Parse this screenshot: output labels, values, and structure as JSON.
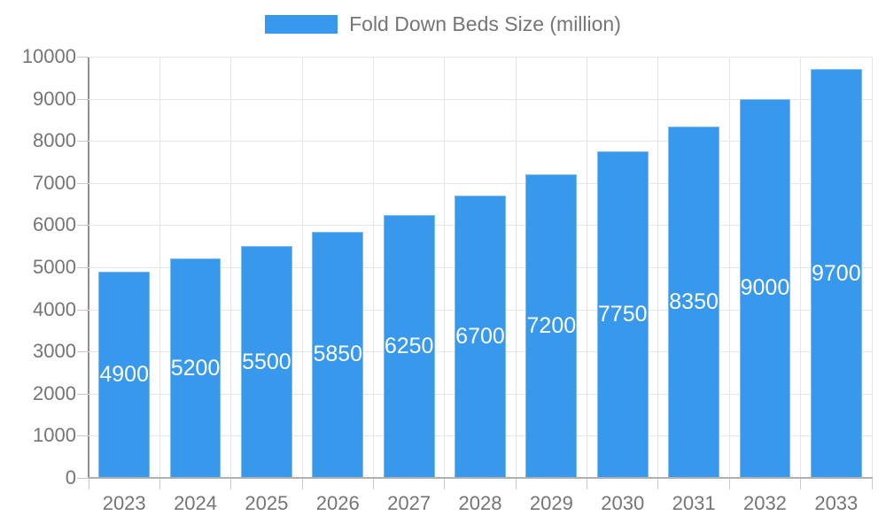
{
  "legend": {
    "items": [
      {
        "label": "Fold Down Beds Size (million)",
        "color": "#3898EC"
      }
    ],
    "position": "top"
  },
  "chart_data": {
    "type": "bar",
    "title": "Fold Down Beds Size (million)",
    "categories": [
      "2023",
      "2024",
      "2025",
      "2026",
      "2027",
      "2028",
      "2029",
      "2030",
      "2031",
      "2032",
      "2033"
    ],
    "values": [
      4900,
      5200,
      5500,
      5850,
      6250,
      6700,
      7200,
      7750,
      8350,
      9000,
      9700
    ],
    "value_labels": [
      "4900",
      "5200",
      "5500",
      "5850",
      "6250",
      "6700",
      "7200",
      "7750",
      "8350",
      "9000",
      "9700"
    ],
    "series": [
      {
        "name": "Fold Down Beds Size (million)",
        "values": [
          4900,
          5200,
          5500,
          5850,
          6250,
          6700,
          7200,
          7750,
          8350,
          9000,
          9700
        ]
      }
    ],
    "xlabel": "",
    "ylabel": "",
    "ylim": [
      0,
      10000
    ],
    "ytick_step": 1000,
    "yticks": [
      "0",
      "1000",
      "2000",
      "3000",
      "4000",
      "5000",
      "6000",
      "7000",
      "8000",
      "9000",
      "10000"
    ],
    "grid": true,
    "legend_position": "top",
    "value_label_position": "center-of-bar",
    "colors": {
      "bar": "#3898EC",
      "value_label": "#ffffff",
      "axis_label": "#757575",
      "gridline": "#e6e6e6",
      "y_axis_line": "#8f8f8f",
      "x_axis_line": "#b0b0b0",
      "tick": "#c9c9c9",
      "background": "#ffffff"
    }
  }
}
